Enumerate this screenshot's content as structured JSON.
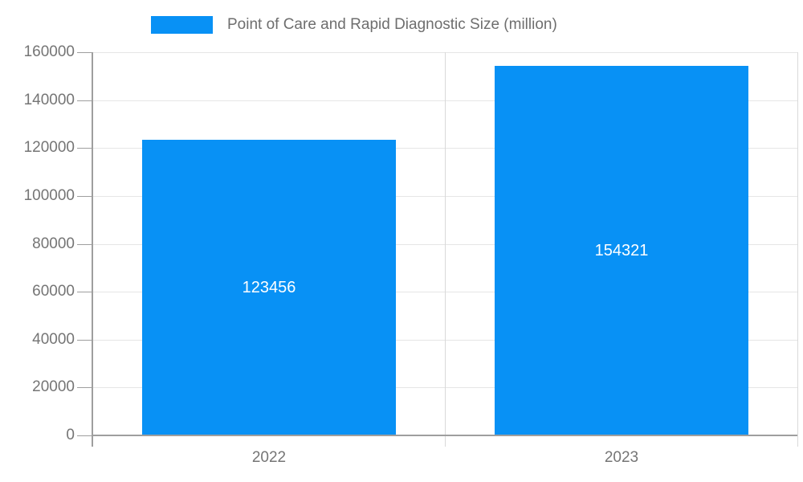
{
  "chart_data": {
    "type": "bar",
    "title": "",
    "legend": {
      "label": "Point of Care and Rapid Diagnostic Size (million)",
      "position": "top"
    },
    "categories": [
      "2022",
      "2023"
    ],
    "series": [
      {
        "name": "Point of Care and Rapid Diagnostic Size (million)",
        "values": [
          123456,
          154321
        ]
      }
    ],
    "data_labels": [
      "123456",
      "154321"
    ],
    "xlabel": "",
    "ylabel": "",
    "ylim": [
      0,
      160000
    ],
    "yticks": [
      0,
      20000,
      40000,
      60000,
      80000,
      100000,
      120000,
      140000,
      160000
    ],
    "grid": true,
    "legend_position": "top-center"
  },
  "colors": {
    "bar": "#0891f5",
    "axis": "#9e9e9e",
    "gridline": "#e6e6e6",
    "category_gridline": "#d9d9d9",
    "tick_label": "#757575",
    "legend_text": "#6e6e6e",
    "data_label": "#ffffff",
    "background": "#ffffff"
  }
}
